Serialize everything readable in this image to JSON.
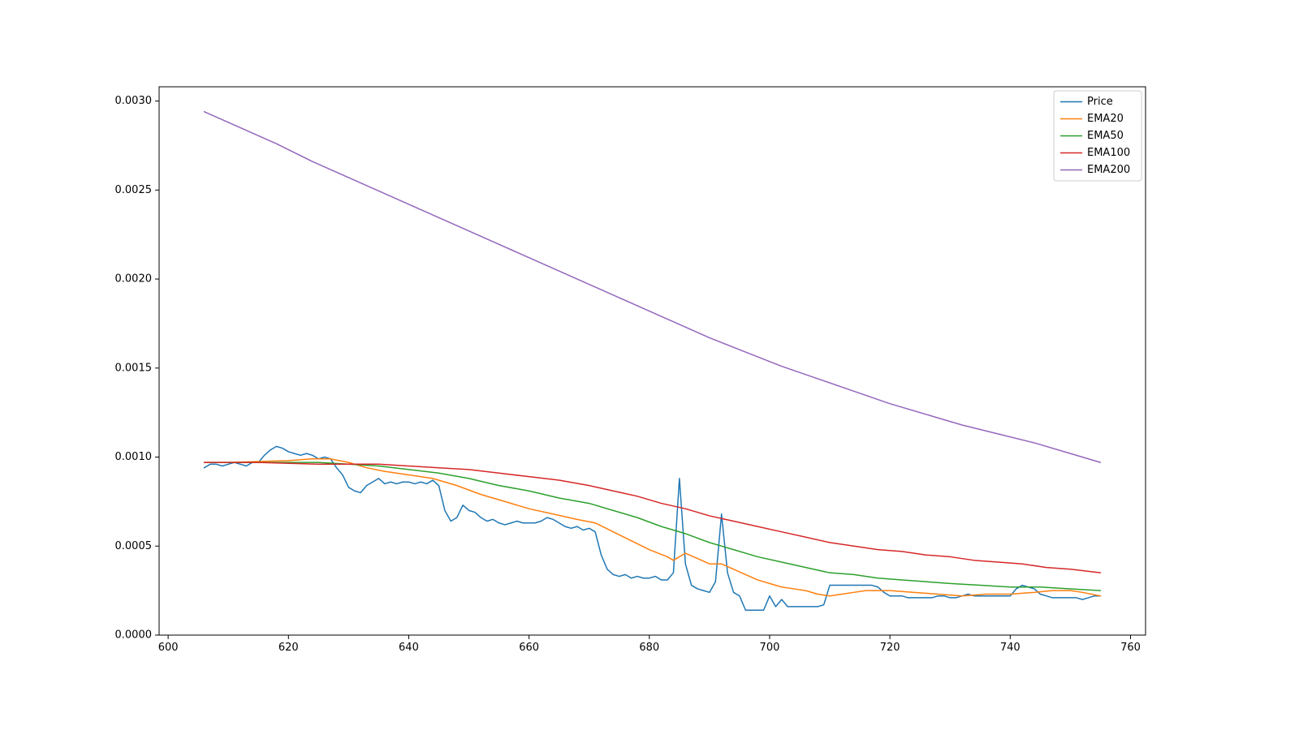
{
  "chart_data": {
    "type": "line",
    "title": "",
    "xlabel": "",
    "ylabel": "",
    "grid": false,
    "xlim": [
      598.5,
      762.5
    ],
    "ylim": [
      0,
      0.00308
    ],
    "x_ticks": [
      600,
      620,
      640,
      660,
      680,
      700,
      720,
      740,
      760
    ],
    "x_tick_labels": [
      "600",
      "620",
      "640",
      "660",
      "680",
      "700",
      "720",
      "740",
      "760"
    ],
    "y_ticks": [
      0.0,
      0.0005,
      0.001,
      0.0015,
      0.002,
      0.0025,
      0.003
    ],
    "y_tick_labels": [
      "0.0000",
      "0.0005",
      "0.0010",
      "0.0015",
      "0.0020",
      "0.0025",
      "0.0030"
    ],
    "legend_position": "upper right",
    "series": [
      {
        "name": "Price",
        "color": "#1f77b4",
        "points": [
          [
            606,
            0.00094
          ],
          [
            607,
            0.00096
          ],
          [
            608,
            0.00096
          ],
          [
            609,
            0.00095
          ],
          [
            610,
            0.00096
          ],
          [
            611,
            0.00097
          ],
          [
            612,
            0.00096
          ],
          [
            613,
            0.00095
          ],
          [
            614,
            0.00097
          ],
          [
            615,
            0.00097
          ],
          [
            616,
            0.00101
          ],
          [
            617,
            0.00104
          ],
          [
            618,
            0.00106
          ],
          [
            619,
            0.00105
          ],
          [
            620,
            0.00103
          ],
          [
            621,
            0.00102
          ],
          [
            622,
            0.00101
          ],
          [
            623,
            0.00102
          ],
          [
            624,
            0.00101
          ],
          [
            625,
            0.00099
          ],
          [
            626,
            0.001
          ],
          [
            627,
            0.00099
          ],
          [
            628,
            0.00094
          ],
          [
            629,
            0.0009
          ],
          [
            630,
            0.00083
          ],
          [
            631,
            0.00081
          ],
          [
            632,
            0.0008
          ],
          [
            633,
            0.00084
          ],
          [
            634,
            0.00086
          ],
          [
            635,
            0.00088
          ],
          [
            636,
            0.00085
          ],
          [
            637,
            0.00086
          ],
          [
            638,
            0.00085
          ],
          [
            639,
            0.00086
          ],
          [
            640,
            0.00086
          ],
          [
            641,
            0.00085
          ],
          [
            642,
            0.00086
          ],
          [
            643,
            0.00085
          ],
          [
            644,
            0.00087
          ],
          [
            645,
            0.00084
          ],
          [
            646,
            0.0007
          ],
          [
            647,
            0.00064
          ],
          [
            648,
            0.00066
          ],
          [
            649,
            0.00073
          ],
          [
            650,
            0.0007
          ],
          [
            651,
            0.00069
          ],
          [
            652,
            0.00066
          ],
          [
            653,
            0.00064
          ],
          [
            654,
            0.00065
          ],
          [
            655,
            0.00063
          ],
          [
            656,
            0.00062
          ],
          [
            657,
            0.00063
          ],
          [
            658,
            0.00064
          ],
          [
            659,
            0.00063
          ],
          [
            660,
            0.00063
          ],
          [
            661,
            0.00063
          ],
          [
            662,
            0.00064
          ],
          [
            663,
            0.00066
          ],
          [
            664,
            0.00065
          ],
          [
            665,
            0.00063
          ],
          [
            666,
            0.00061
          ],
          [
            667,
            0.0006
          ],
          [
            668,
            0.00061
          ],
          [
            669,
            0.00059
          ],
          [
            670,
            0.0006
          ],
          [
            671,
            0.00058
          ],
          [
            672,
            0.00045
          ],
          [
            673,
            0.00037
          ],
          [
            674,
            0.00034
          ],
          [
            675,
            0.00033
          ],
          [
            676,
            0.00034
          ],
          [
            677,
            0.00032
          ],
          [
            678,
            0.00033
          ],
          [
            679,
            0.00032
          ],
          [
            680,
            0.00032
          ],
          [
            681,
            0.00033
          ],
          [
            682,
            0.00031
          ],
          [
            683,
            0.00031
          ],
          [
            684,
            0.00035
          ],
          [
            685,
            0.00088
          ],
          [
            686,
            0.0004
          ],
          [
            687,
            0.00028
          ],
          [
            688,
            0.00026
          ],
          [
            689,
            0.00025
          ],
          [
            690,
            0.00024
          ],
          [
            691,
            0.0003
          ],
          [
            692,
            0.00068
          ],
          [
            693,
            0.00035
          ],
          [
            694,
            0.00024
          ],
          [
            695,
            0.00022
          ],
          [
            696,
            0.00014
          ],
          [
            697,
            0.00014
          ],
          [
            698,
            0.00014
          ],
          [
            699,
            0.00014
          ],
          [
            700,
            0.00022
          ],
          [
            701,
            0.00016
          ],
          [
            702,
            0.0002
          ],
          [
            703,
            0.00016
          ],
          [
            704,
            0.00016
          ],
          [
            705,
            0.00016
          ],
          [
            706,
            0.00016
          ],
          [
            707,
            0.00016
          ],
          [
            708,
            0.00016
          ],
          [
            709,
            0.00017
          ],
          [
            710,
            0.00028
          ],
          [
            711,
            0.00028
          ],
          [
            712,
            0.00028
          ],
          [
            713,
            0.00028
          ],
          [
            714,
            0.00028
          ],
          [
            715,
            0.00028
          ],
          [
            716,
            0.00028
          ],
          [
            717,
            0.00028
          ],
          [
            718,
            0.00027
          ],
          [
            719,
            0.00024
          ],
          [
            720,
            0.00022
          ],
          [
            721,
            0.00022
          ],
          [
            722,
            0.00022
          ],
          [
            723,
            0.00021
          ],
          [
            724,
            0.00021
          ],
          [
            725,
            0.00021
          ],
          [
            726,
            0.00021
          ],
          [
            727,
            0.00021
          ],
          [
            728,
            0.00022
          ],
          [
            729,
            0.00022
          ],
          [
            730,
            0.00021
          ],
          [
            731,
            0.00021
          ],
          [
            732,
            0.00022
          ],
          [
            733,
            0.00023
          ],
          [
            734,
            0.00022
          ],
          [
            735,
            0.00022
          ],
          [
            736,
            0.00022
          ],
          [
            737,
            0.00022
          ],
          [
            738,
            0.00022
          ],
          [
            739,
            0.00022
          ],
          [
            740,
            0.00022
          ],
          [
            741,
            0.00026
          ],
          [
            742,
            0.00028
          ],
          [
            743,
            0.00027
          ],
          [
            744,
            0.00026
          ],
          [
            745,
            0.00023
          ],
          [
            746,
            0.00022
          ],
          [
            747,
            0.00021
          ],
          [
            748,
            0.00021
          ],
          [
            749,
            0.00021
          ],
          [
            750,
            0.00021
          ],
          [
            751,
            0.00021
          ],
          [
            752,
            0.0002
          ],
          [
            753,
            0.00021
          ],
          [
            754,
            0.00022
          ],
          [
            755,
            0.00022
          ]
        ]
      },
      {
        "name": "EMA20",
        "color": "#ff7f0e",
        "points": [
          [
            606,
            0.00097
          ],
          [
            610,
            0.00097
          ],
          [
            615,
            0.000975
          ],
          [
            620,
            0.00098
          ],
          [
            624,
            0.00099
          ],
          [
            627,
            0.00099
          ],
          [
            630,
            0.00097
          ],
          [
            633,
            0.00094
          ],
          [
            636,
            0.00092
          ],
          [
            640,
            0.0009
          ],
          [
            644,
            0.00088
          ],
          [
            648,
            0.00084
          ],
          [
            652,
            0.00079
          ],
          [
            656,
            0.00075
          ],
          [
            660,
            0.00071
          ],
          [
            664,
            0.00068
          ],
          [
            668,
            0.00065
          ],
          [
            671,
            0.00063
          ],
          [
            674,
            0.00058
          ],
          [
            677,
            0.00053
          ],
          [
            680,
            0.00048
          ],
          [
            683,
            0.00044
          ],
          [
            684,
            0.00042
          ],
          [
            686,
            0.00046
          ],
          [
            688,
            0.00043
          ],
          [
            690,
            0.0004
          ],
          [
            692,
            0.0004
          ],
          [
            694,
            0.00037
          ],
          [
            696,
            0.00034
          ],
          [
            698,
            0.00031
          ],
          [
            700,
            0.00029
          ],
          [
            702,
            0.00027
          ],
          [
            704,
            0.00026
          ],
          [
            706,
            0.00025
          ],
          [
            708,
            0.00023
          ],
          [
            710,
            0.00022
          ],
          [
            712,
            0.00023
          ],
          [
            714,
            0.00024
          ],
          [
            716,
            0.00025
          ],
          [
            720,
            0.00025
          ],
          [
            724,
            0.00024
          ],
          [
            728,
            0.00023
          ],
          [
            732,
            0.00022
          ],
          [
            736,
            0.00023
          ],
          [
            740,
            0.00023
          ],
          [
            744,
            0.00024
          ],
          [
            747,
            0.00025
          ],
          [
            750,
            0.00025
          ],
          [
            752,
            0.00024
          ],
          [
            755,
            0.00022
          ]
        ]
      },
      {
        "name": "EMA50",
        "color": "#2ca02c",
        "points": [
          [
            606,
            0.00097
          ],
          [
            615,
            0.00097
          ],
          [
            625,
            0.00097
          ],
          [
            630,
            0.00096
          ],
          [
            635,
            0.00095
          ],
          [
            640,
            0.00093
          ],
          [
            645,
            0.00091
          ],
          [
            650,
            0.00088
          ],
          [
            655,
            0.00084
          ],
          [
            660,
            0.00081
          ],
          [
            665,
            0.00077
          ],
          [
            670,
            0.00074
          ],
          [
            674,
            0.0007
          ],
          [
            678,
            0.00066
          ],
          [
            682,
            0.00061
          ],
          [
            686,
            0.00057
          ],
          [
            690,
            0.00052
          ],
          [
            694,
            0.00048
          ],
          [
            698,
            0.00044
          ],
          [
            702,
            0.00041
          ],
          [
            706,
            0.00038
          ],
          [
            710,
            0.00035
          ],
          [
            714,
            0.00034
          ],
          [
            718,
            0.00032
          ],
          [
            722,
            0.00031
          ],
          [
            726,
            0.0003
          ],
          [
            730,
            0.00029
          ],
          [
            735,
            0.00028
          ],
          [
            740,
            0.00027
          ],
          [
            745,
            0.00027
          ],
          [
            750,
            0.00026
          ],
          [
            755,
            0.00025
          ]
        ]
      },
      {
        "name": "EMA100",
        "color": "#d62728",
        "points": [
          [
            606,
            0.00097
          ],
          [
            615,
            0.00097
          ],
          [
            625,
            0.00096
          ],
          [
            635,
            0.00096
          ],
          [
            645,
            0.00094
          ],
          [
            650,
            0.00093
          ],
          [
            655,
            0.00091
          ],
          [
            660,
            0.00089
          ],
          [
            665,
            0.00087
          ],
          [
            670,
            0.00084
          ],
          [
            674,
            0.00081
          ],
          [
            678,
            0.00078
          ],
          [
            682,
            0.00074
          ],
          [
            686,
            0.00071
          ],
          [
            690,
            0.00067
          ],
          [
            694,
            0.00064
          ],
          [
            698,
            0.00061
          ],
          [
            702,
            0.00058
          ],
          [
            706,
            0.00055
          ],
          [
            710,
            0.00052
          ],
          [
            714,
            0.0005
          ],
          [
            718,
            0.00048
          ],
          [
            722,
            0.00047
          ],
          [
            726,
            0.00045
          ],
          [
            730,
            0.00044
          ],
          [
            734,
            0.00042
          ],
          [
            738,
            0.00041
          ],
          [
            742,
            0.0004
          ],
          [
            746,
            0.00038
          ],
          [
            750,
            0.00037
          ],
          [
            755,
            0.00035
          ]
        ]
      },
      {
        "name": "EMA200",
        "color": "#9467bd",
        "points": [
          [
            606,
            0.00294
          ],
          [
            612,
            0.00285
          ],
          [
            618,
            0.00276
          ],
          [
            624,
            0.00266
          ],
          [
            630,
            0.00257
          ],
          [
            636,
            0.00248
          ],
          [
            642,
            0.00239
          ],
          [
            648,
            0.0023
          ],
          [
            654,
            0.00221
          ],
          [
            660,
            0.00212
          ],
          [
            666,
            0.00203
          ],
          [
            672,
            0.00194
          ],
          [
            678,
            0.00185
          ],
          [
            684,
            0.00176
          ],
          [
            690,
            0.00167
          ],
          [
            696,
            0.00159
          ],
          [
            702,
            0.00151
          ],
          [
            708,
            0.00144
          ],
          [
            714,
            0.00137
          ],
          [
            720,
            0.0013
          ],
          [
            726,
            0.00124
          ],
          [
            732,
            0.00118
          ],
          [
            738,
            0.00113
          ],
          [
            744,
            0.00108
          ],
          [
            750,
            0.00102
          ],
          [
            755,
            0.00097
          ]
        ]
      }
    ]
  },
  "legend": {
    "labels": [
      "Price",
      "EMA20",
      "EMA50",
      "EMA100",
      "EMA200"
    ],
    "border_color": "#cccccc",
    "background_color": "#ffffff"
  },
  "axes": {
    "spine_color": "#000000",
    "tick_color": "#000000"
  }
}
